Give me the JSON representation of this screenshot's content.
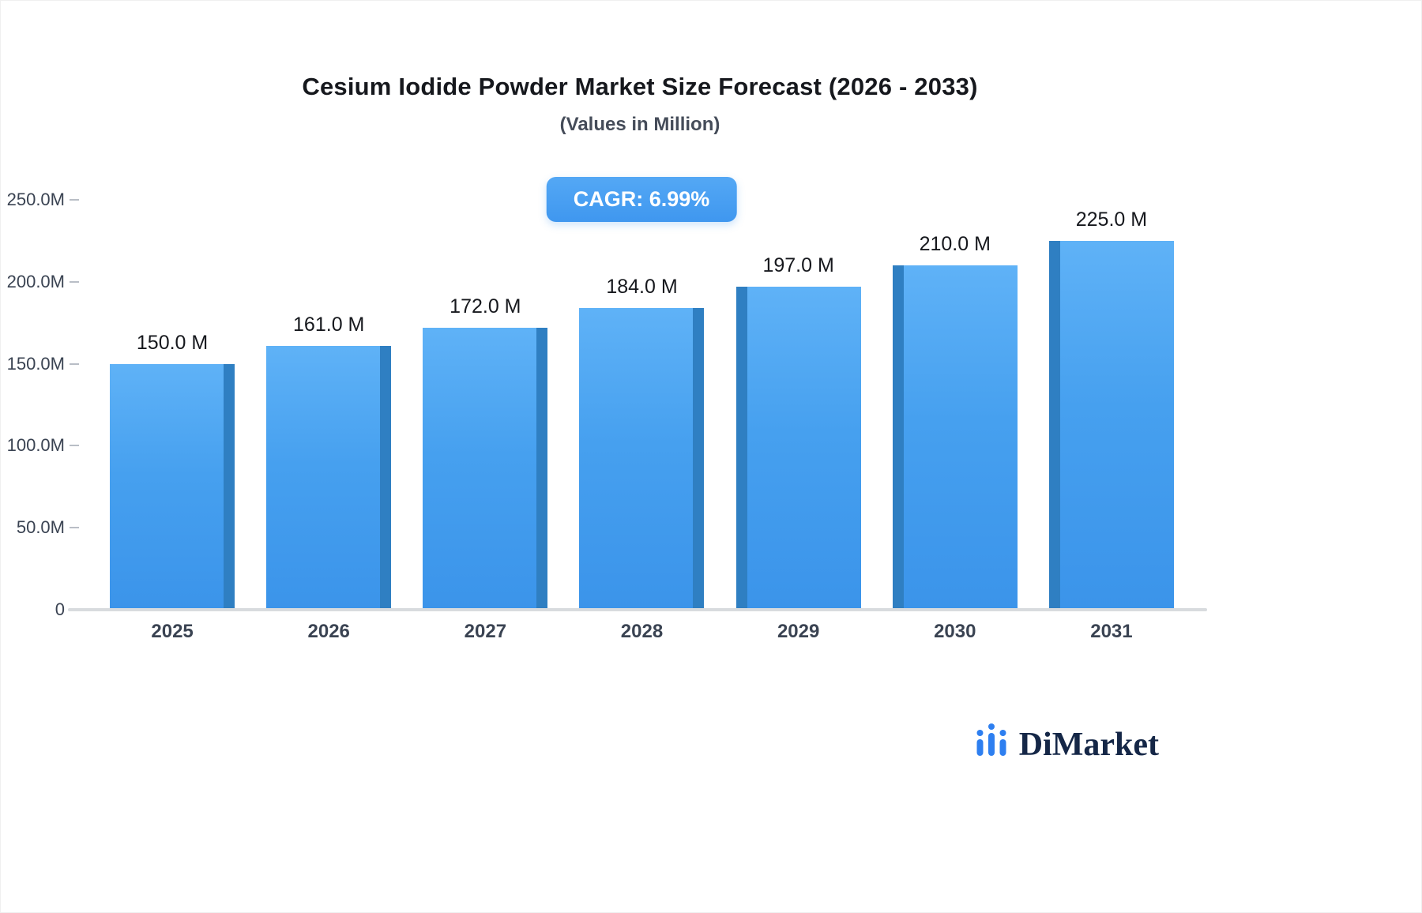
{
  "header": {
    "title": "Cesium Iodide Powder Market Size Forecast (2026 - 2033)",
    "subtitle": "(Values in Million)",
    "cagr_label": "CAGR: 6.99%"
  },
  "chart_data": {
    "type": "bar",
    "title": "Cesium Iodide Powder Market Size Forecast (2026 - 2033)",
    "subtitle": "(Values in Million)",
    "categories": [
      "2025",
      "2026",
      "2027",
      "2028",
      "2029",
      "2030",
      "2031"
    ],
    "values": [
      150,
      161,
      172,
      184,
      197,
      210,
      225
    ],
    "value_labels": [
      "150.0 M",
      "161.0 M",
      "172.0 M",
      "184.0 M",
      "197.0 M",
      "210.0 M",
      "225.0 M"
    ],
    "xlabel": "",
    "ylabel": "",
    "ylim": [
      0,
      250
    ],
    "yticks": [
      {
        "label": "250.0M",
        "value": 250
      },
      {
        "label": "200.0M",
        "value": 200
      },
      {
        "label": "150.0M",
        "value": 150
      },
      {
        "label": "100.0M",
        "value": 100
      },
      {
        "label": "50.0M",
        "value": 50
      },
      {
        "label": "0",
        "value": 0
      }
    ],
    "grid": false,
    "legend": "none",
    "colors": {
      "bar_face_top": "#5fb2f7",
      "bar_face_bottom": "#3b94ea",
      "bar_side": "#2f7fc2",
      "badge": "#3f97ef",
      "axis": "#d8dbde"
    }
  },
  "footer": {
    "brand": "DiMarket"
  }
}
